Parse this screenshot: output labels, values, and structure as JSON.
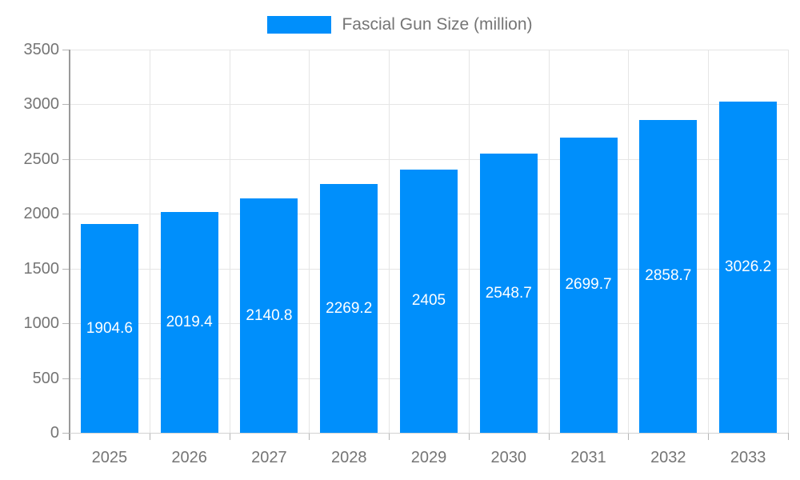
{
  "colors": {
    "bar": "#008FFB",
    "axis_label": "#757575",
    "value_label": "#ffffff",
    "grid_line": "#e5e5e5",
    "axis_line_y": "#9a9a9a",
    "axis_line_x": "#d2d2d2",
    "tick": "#b5b5b5",
    "background": "#ffffff"
  },
  "chart_data": {
    "type": "bar",
    "title": "Fascial Gun Size (million)",
    "series_name": "Fascial Gun Size (million)",
    "categories": [
      "2025",
      "2026",
      "2027",
      "2028",
      "2029",
      "2030",
      "2031",
      "2032",
      "2033"
    ],
    "values": [
      1904.6,
      2019.4,
      2140.8,
      2269.2,
      2405,
      2548.7,
      2699.7,
      2858.7,
      3026.2
    ],
    "value_labels": [
      "1904.6",
      "2019.4",
      "2140.8",
      "2269.2",
      "2405",
      "2548.7",
      "2699.7",
      "2858.7",
      "3026.2"
    ],
    "xlabel": "",
    "ylabel": "",
    "ylim": [
      0,
      3500
    ],
    "yticks": [
      0,
      500,
      1000,
      1500,
      2000,
      2500,
      3000,
      3500
    ],
    "grid": true,
    "legend_position": "top-center",
    "value_label_position": "center-of-bar"
  }
}
